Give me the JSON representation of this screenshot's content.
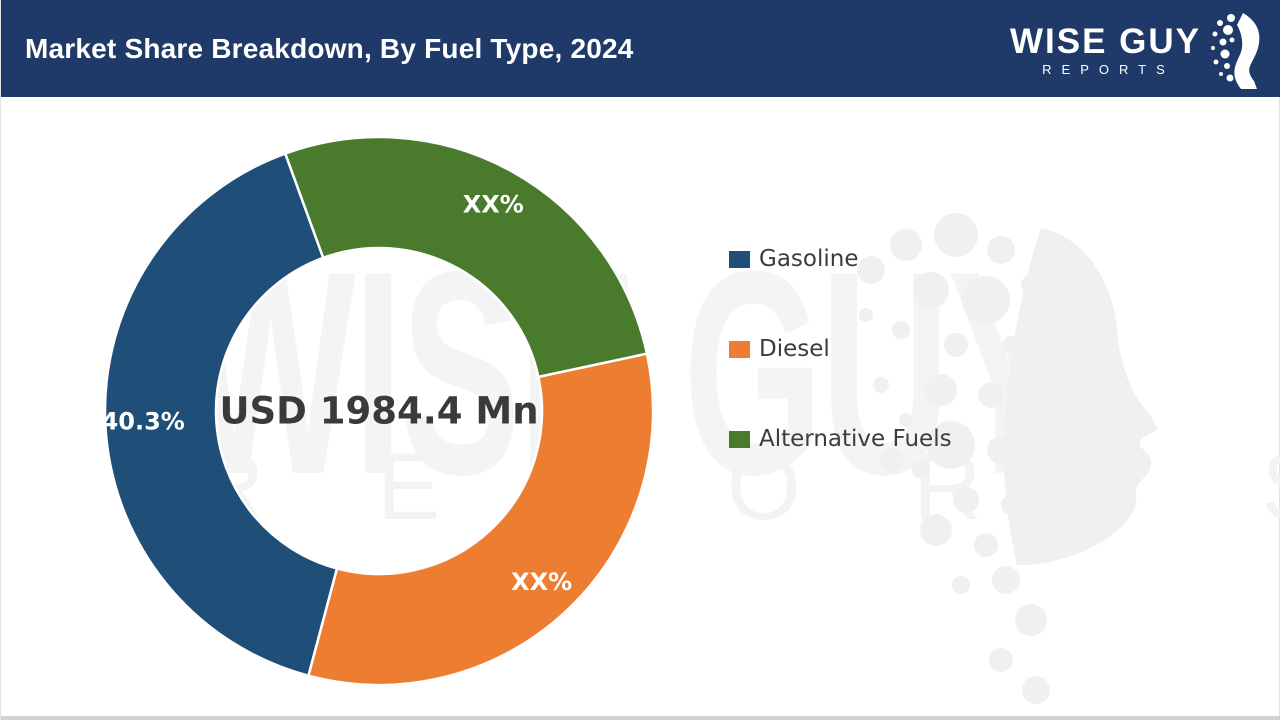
{
  "header": {
    "title": "Market Share Breakdown, By Fuel Type, 2024",
    "logo": {
      "line1": "WISE GUY",
      "line2": "REPORTS"
    }
  },
  "watermark": {
    "line1": "WISE GUY",
    "line2": "R E P O R T S"
  },
  "colors": {
    "header_bg": "#1f3a68",
    "gasoline": "#1F4E79",
    "diesel": "#ED7D31",
    "alternative_fuels": "#4A7A2B",
    "center_text": "#3a3a3a",
    "watermark": "#f3f3f3"
  },
  "chart_data": {
    "type": "pie",
    "title": "Market Share Breakdown, By Fuel Type, 2024",
    "donut": true,
    "donut_hole_ratio": 0.6,
    "center_label": "USD 1984.4 Mn",
    "categories": [
      "Gasoline",
      "Diesel",
      "Alternative Fuels"
    ],
    "slice_labels": [
      "40.3%",
      "XX%",
      "XX%"
    ],
    "arc_percents": [
      40.3,
      32.5,
      27.2
    ],
    "colors": [
      "#1F4E79",
      "#ED7D31",
      "#4A7A2B"
    ],
    "start_angle_deg": 110,
    "direction": "counterclockwise",
    "legend_position": "right",
    "legend_entries": [
      "Gasoline",
      "Diesel",
      "Alternative Fuels"
    ]
  }
}
